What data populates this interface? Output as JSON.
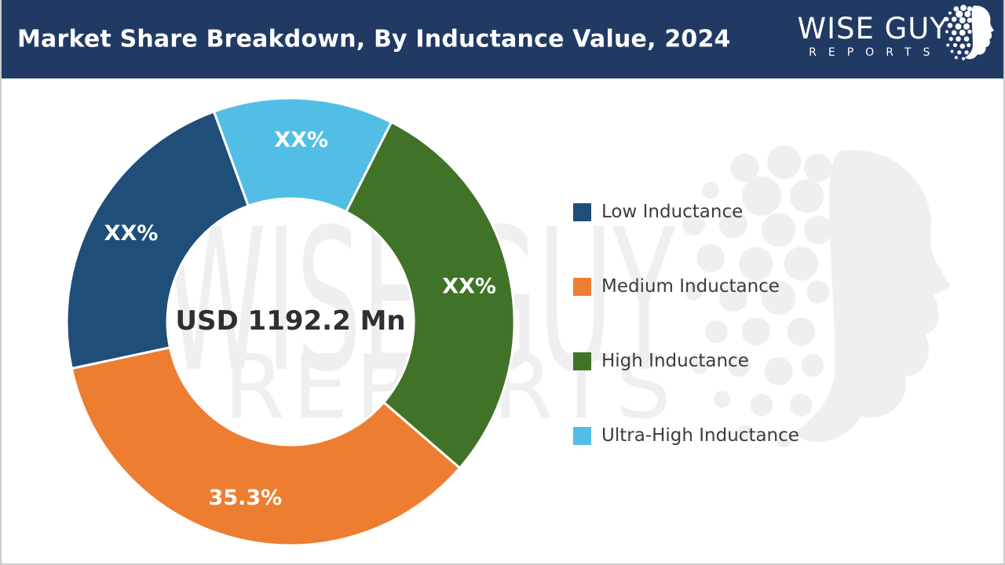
{
  "header": {
    "title": "Market Share Breakdown, By Inductance Value, 2024",
    "logo_line1": "WISE GUY",
    "logo_line2": "REPORTS"
  },
  "watermark": {
    "line1": "WISE GUY",
    "line2": "REPORTS"
  },
  "colors": {
    "header_bg": "#213A64",
    "title_text": "#FFFFFF",
    "slice_label_text": "#FFFFFF",
    "center_text": "#2F2F2F",
    "legend_text": "#3C3C3C",
    "watermark": "#EFEFF2",
    "frame_border": "#CBCBCB",
    "low_inductance": "#1F4E79",
    "medium_inductance": "#ED7D31",
    "high_inductance": "#407327",
    "ultra_high_inductance": "#53BEE5"
  },
  "chart_data": {
    "type": "pie",
    "variant": "donut",
    "title": "Market Share Breakdown, By Inductance Value, 2024",
    "center_label": "USD 1192.2 Mn",
    "start_angle_deg": 110,
    "direction": "counterclockwise",
    "legend_position": "right",
    "segments": [
      {
        "name": "Low Inductance",
        "color": "#1F4E79",
        "label": "XX%",
        "value_pct": 22.8
      },
      {
        "name": "Medium Inductance",
        "color": "#ED7D31",
        "label": "35.3%",
        "value_pct": 35.3
      },
      {
        "name": "High Inductance",
        "color": "#407327",
        "label": "XX%",
        "value_pct": 28.9
      },
      {
        "name": "Ultra-High Inductance",
        "color": "#53BEE5",
        "label": "XX%",
        "value_pct": 13.0
      }
    ]
  }
}
